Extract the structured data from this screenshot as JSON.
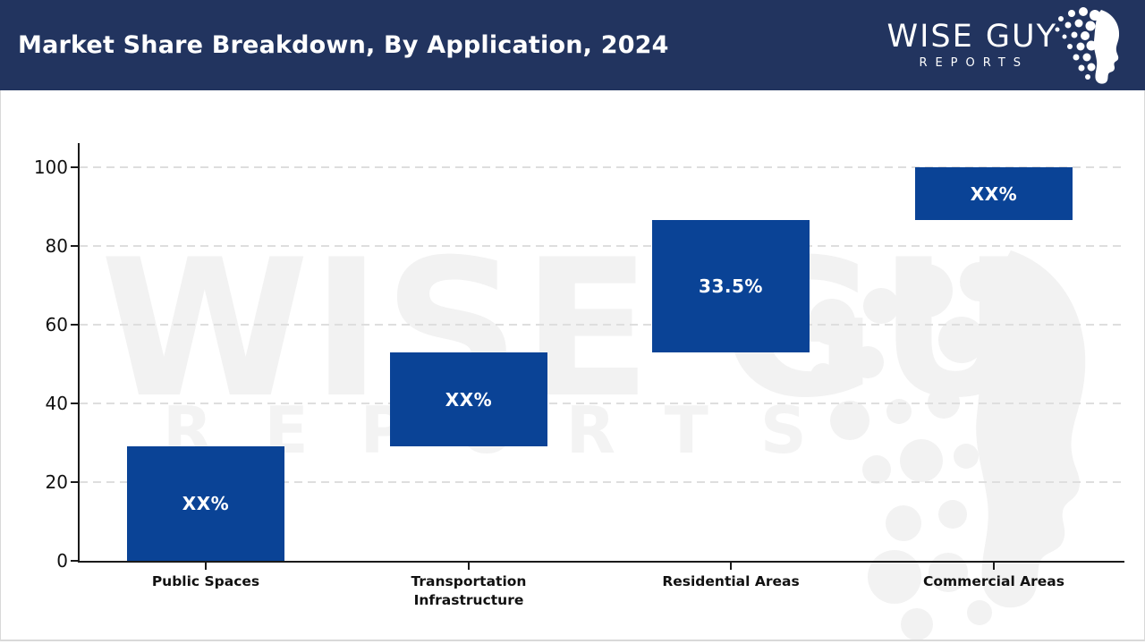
{
  "header": {
    "title": "Market Share Breakdown, By Application, 2024",
    "logo": {
      "line1": "WISE GUY",
      "line2": "REPORTS"
    }
  },
  "watermark": {
    "line1": "WISE GU",
    "line2": "REPORTS"
  },
  "chart_data": {
    "type": "bar",
    "subtype": "waterfall",
    "title": "Market Share Breakdown, By Application, 2024",
    "categories": [
      "Public Spaces",
      "Transportation Infrastructure",
      "Residential Areas",
      "Commercial Areas"
    ],
    "segments": [
      {
        "category": "Public Spaces",
        "start": 0,
        "end": 29,
        "value": 29,
        "label": "XX%"
      },
      {
        "category": "Transportation Infrastructure",
        "start": 29,
        "end": 53,
        "value": 24,
        "label": "XX%"
      },
      {
        "category": "Residential Areas",
        "start": 53,
        "end": 86.5,
        "value": 33.5,
        "label": "33.5%"
      },
      {
        "category": "Commercial Areas",
        "start": 86.5,
        "end": 100,
        "value": 13.5,
        "label": "XX%"
      }
    ],
    "ylim": [
      0,
      100
    ],
    "yticks": [
      0,
      20,
      40,
      60,
      80,
      100
    ],
    "xlabel": "",
    "ylabel": "",
    "grid": "horizontal-dashed",
    "legend": "none",
    "bar_color": "#0A4396",
    "bar_label_color": "#FFFFFF",
    "header_color": "#22345F"
  }
}
